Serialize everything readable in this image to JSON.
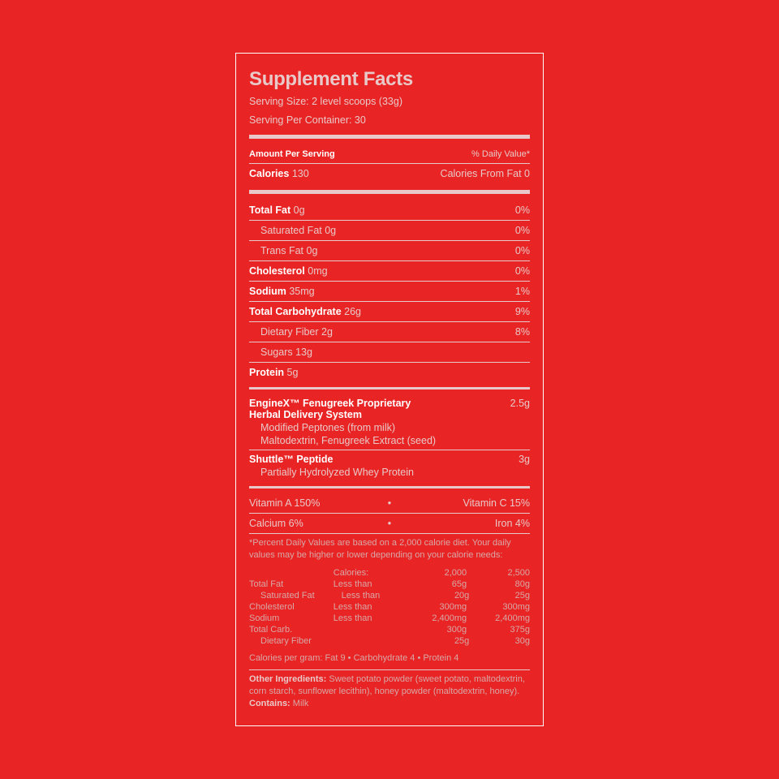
{
  "title": "Supplement Facts",
  "serving_size": "Serving Size: 2 level scoops (33g)",
  "serving_per": "Serving Per Container: 30",
  "aps": "Amount Per Serving",
  "dv_hdr": "% Daily Value*",
  "cal_label": "Calories",
  "cal_val": "130",
  "cal_fat": "Calories From Fat 0",
  "nutrients": [
    {
      "label": "Total Fat",
      "val": "0g",
      "dv": "0%",
      "bold": true,
      "ind": false
    },
    {
      "label": "Saturated Fat",
      "val": "0g",
      "dv": "0%",
      "bold": false,
      "ind": true
    },
    {
      "label": "Trans Fat",
      "val": "0g",
      "dv": "0%",
      "bold": false,
      "ind": true
    },
    {
      "label": "Cholesterol",
      "val": "0mg",
      "dv": "0%",
      "bold": true,
      "ind": false
    },
    {
      "label": "Sodium",
      "val": "35mg",
      "dv": "1%",
      "bold": true,
      "ind": false
    },
    {
      "label": "Total Carbohydrate",
      "val": "26g",
      "dv": "9%",
      "bold": true,
      "ind": false
    },
    {
      "label": "Dietary Fiber",
      "val": "2g",
      "dv": "8%",
      "bold": false,
      "ind": true
    },
    {
      "label": "Sugars",
      "val": "13g",
      "dv": "",
      "bold": false,
      "ind": true
    },
    {
      "label": "Protein",
      "val": "5g",
      "dv": "",
      "bold": true,
      "ind": false
    }
  ],
  "prop1_name": "EngineX™ Fenugreek Proprietary",
  "prop1_name2": "Herbal Delivery System",
  "prop1_amt": "2.5g",
  "prop1_sub1": "Modified Peptones (from milk)",
  "prop1_sub2": "Maltodextrin, Fenugreek Extract (seed)",
  "prop2_name": "Shuttle™ Peptide",
  "prop2_amt": "3g",
  "prop2_sub": "Partially Hydrolyzed Whey Protein",
  "vit_a": "Vitamin A 150%",
  "vit_c": "Vitamin C 15%",
  "calcium": "Calcium 6%",
  "iron": "Iron 4%",
  "dot": "•",
  "footnote": "*Percent Daily Values are based on a 2,000 calorie diet. Your daily values may be higher or lower depending on your calorie needs:",
  "ref_hdr": {
    "c1": "",
    "c2": "Calories:",
    "c3": "2,000",
    "c4": "2,500"
  },
  "ref_rows": [
    {
      "c1": "Total Fat",
      "c2": "Less than",
      "c3": "65g",
      "c4": "80g",
      "ind": false
    },
    {
      "c1": "Saturated Fat",
      "c2": "Less than",
      "c3": "20g",
      "c4": "25g",
      "ind": true
    },
    {
      "c1": "Cholesterol",
      "c2": "Less than",
      "c3": "300mg",
      "c4": "300mg",
      "ind": false
    },
    {
      "c1": "Sodium",
      "c2": "Less than",
      "c3": "2,400mg",
      "c4": "2,400mg",
      "ind": false
    },
    {
      "c1": "Total Carb.",
      "c2": "",
      "c3": "300g",
      "c4": "375g",
      "ind": false
    },
    {
      "c1": "Dietary Fiber",
      "c2": "",
      "c3": "25g",
      "c4": "30g",
      "ind": true
    }
  ],
  "cpg": "Calories per gram:    Fat 9 • Carbohydrate 4 • Protein 4",
  "ing_label": "Other Ingredients:",
  "ing_text": " Sweet potato powder (sweet potato, maltodextrin, corn starch, sunflower lecithin), honey powder (maltodextrin, honey).",
  "contains_label": "Contains:",
  "contains_text": " Milk"
}
